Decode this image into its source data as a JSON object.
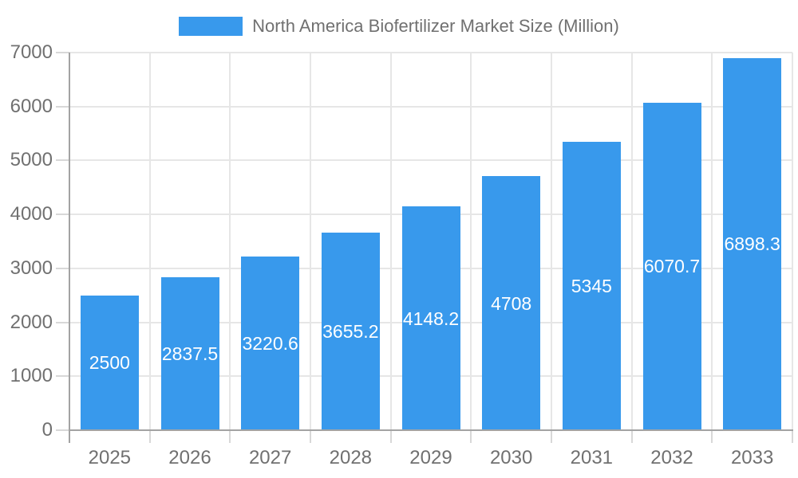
{
  "legend": {
    "label": "North America Biofertilizer Market Size (Million)"
  },
  "chart_data": {
    "type": "bar",
    "title": "North America Biofertilizer Market Size (Million)",
    "categories": [
      "2025",
      "2026",
      "2027",
      "2028",
      "2029",
      "2030",
      "2031",
      "2032",
      "2033"
    ],
    "series": [
      {
        "name": "North America Biofertilizer Market Size (Million)",
        "values": [
          2500,
          2837.5,
          3220.6,
          3655.2,
          4148.2,
          4708,
          5345,
          6070.7,
          6898.3
        ]
      }
    ],
    "bar_labels": [
      "2500",
      "2837.5",
      "3220.6",
      "3655.2",
      "4148.2",
      "4708",
      "5345",
      "6070.7",
      "6898.3"
    ],
    "y_ticks": [
      0,
      1000,
      2000,
      3000,
      4000,
      5000,
      6000,
      7000
    ],
    "y_tick_labels": [
      "0",
      "1000",
      "2000",
      "3000",
      "4000",
      "5000",
      "6000",
      "7000"
    ],
    "ylim": [
      0,
      7000
    ],
    "xlabel": "",
    "ylabel": "",
    "grid": true,
    "legend_position": "top",
    "colors": {
      "bar": "#3899EC",
      "bar_label_text": "#FFFFFF",
      "axis_text": "#707070",
      "gridline": "#E6E6E6",
      "tick": "#D8D8D8",
      "axis_line": "#A3A3A3",
      "background": "#FFFFFF"
    }
  }
}
